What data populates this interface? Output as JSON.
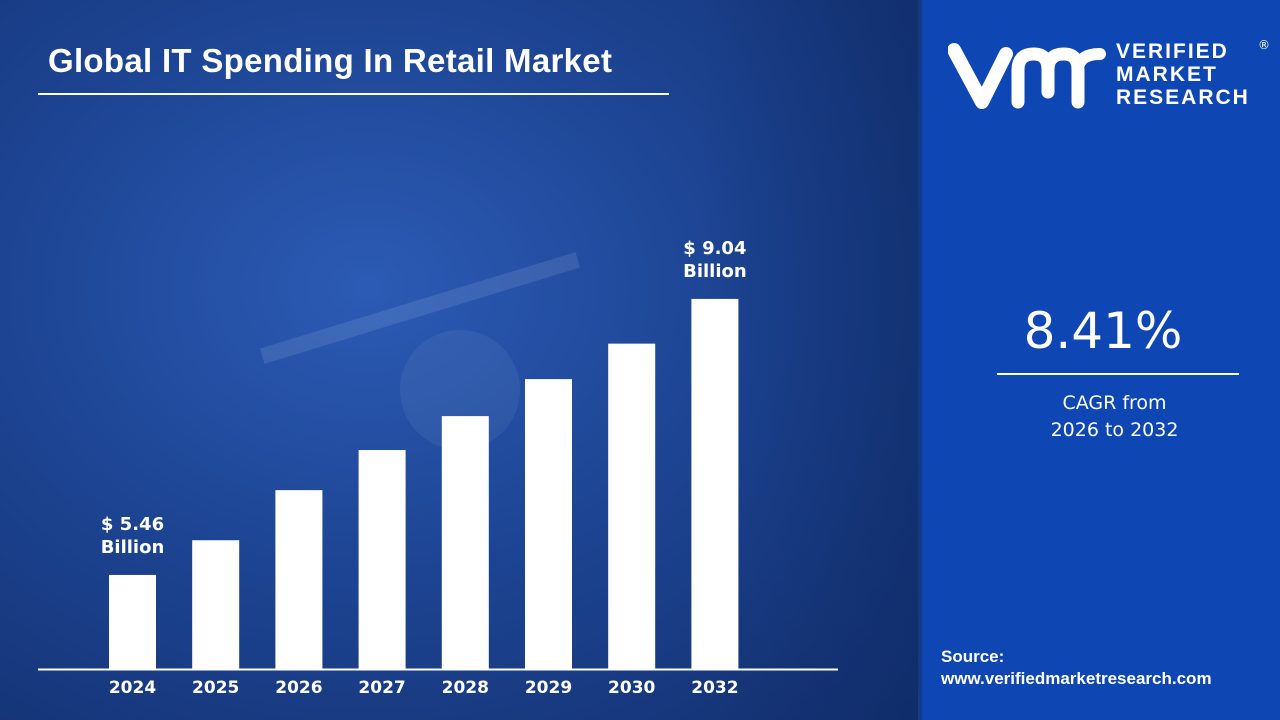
{
  "title": "Global IT Spending In Retail Market",
  "brand": {
    "line1": "VERIFIED",
    "line2": "MARKET",
    "line3": "RESEARCH",
    "registered": "®",
    "monogram": "vmr"
  },
  "cagr": {
    "value": "8.41%",
    "label_line1": "CAGR from",
    "label_line2": "2026 to 2032"
  },
  "source": {
    "label": "Source:",
    "url": "www.verifiedmarketresearch.com"
  },
  "colors": {
    "panel": "#0e47b4",
    "bars": "#ffffff",
    "background": "#1d4594"
  },
  "chart_data": {
    "type": "bar",
    "title": "Global IT Spending In Retail Market",
    "categories": [
      "2024",
      "2025",
      "2026",
      "2027",
      "2028",
      "2029",
      "2030",
      "2032"
    ],
    "values": [
      5.46,
      5.91,
      6.56,
      7.08,
      7.52,
      8.0,
      8.46,
      9.04
    ],
    "unit": "$ Billion",
    "annotations": [
      {
        "category": "2024",
        "line1": "$ 5.46",
        "line2": "Billion"
      },
      {
        "category": "2032",
        "line1": "$ 9.04",
        "line2": "Billion"
      }
    ],
    "grid": false,
    "legend": "none"
  }
}
